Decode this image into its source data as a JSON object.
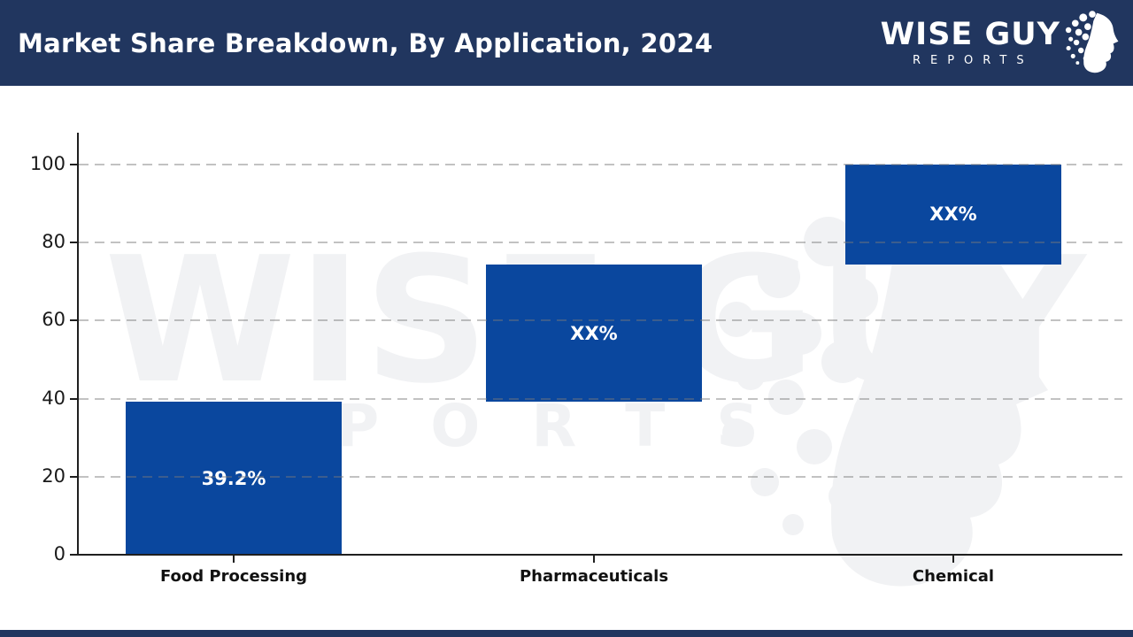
{
  "header": {
    "title": "Market Share Breakdown, By Application, 2024",
    "logo": {
      "line1": "WISE GUY",
      "line2": "REPORTS",
      "icon": "dotted-face-profile-icon"
    }
  },
  "watermark": {
    "line1": "WISE GUY",
    "line2": "REPORTS",
    "icon": "dotted-face-profile-icon"
  },
  "colors": {
    "header_bg": "#21365f",
    "footer_bg": "#21365f",
    "bar_fill": "#0a479e",
    "bar_label_text": "#ffffff",
    "grid_line": "rgba(120,120,120,0.45)",
    "axis_line": "#1f1f1f",
    "tick_label_text": "#1a1a1a",
    "watermark_gray": "#f1f2f4"
  },
  "chart_data": {
    "type": "bar",
    "subtype": "waterfall-floating-segments",
    "title": "Market Share Breakdown, By Application, 2024",
    "categories": [
      "Food Processing",
      "Pharmaceuticals",
      "Chemical"
    ],
    "series": [
      {
        "name": "Market Share",
        "segments": [
          {
            "category": "Food Processing",
            "start": 0,
            "end": 39.2,
            "label": "39.2%"
          },
          {
            "category": "Pharmaceuticals",
            "start": 39.2,
            "end": 74.4,
            "label": "XX%"
          },
          {
            "category": "Chemical",
            "start": 74.4,
            "end": 100,
            "label": "XX%"
          }
        ]
      }
    ],
    "xlabel": "",
    "ylabel": "",
    "ylim": [
      0,
      100
    ],
    "yticks": [
      0,
      20,
      40,
      60,
      80,
      100
    ],
    "grid": "horizontal-dashed",
    "legend": "none"
  }
}
